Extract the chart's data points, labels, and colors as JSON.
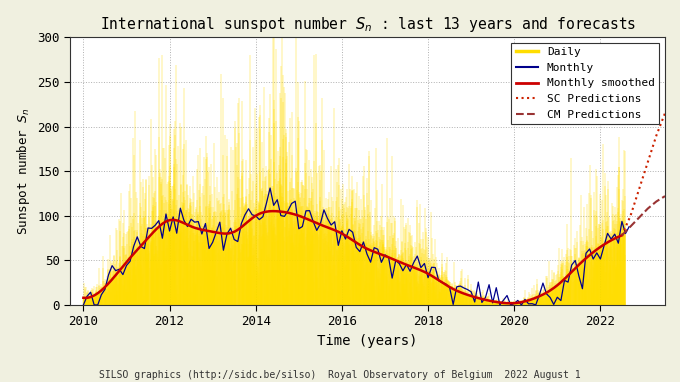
{
  "title": "International sunspot number $S_n$ : last 13 years and forecasts",
  "xlabel": "Time (years)",
  "ylabel": "Sunspot number $S_n$",
  "footnote": "SILSO graphics (http://sidc.be/silso)  Royal Observatory of Belgium  2022 August 1",
  "xlim": [
    2009.7,
    2023.5
  ],
  "ylim": [
    0,
    300
  ],
  "yticks": [
    0,
    50,
    100,
    150,
    200,
    250,
    300
  ],
  "xticks": [
    2010,
    2012,
    2014,
    2016,
    2018,
    2020,
    2022
  ],
  "bg_color": "#f0f0e0",
  "plot_bg_color": "#ffffff",
  "grid_color": "#b0b0b0",
  "daily_color": "#ffdd00",
  "monthly_color": "#00008b",
  "smoothed_color": "#cc0000",
  "sc_pred_color": "#cc2200",
  "cm_pred_color": "#993333",
  "legend_entries": [
    "Daily",
    "Monthly",
    "Monthly smoothed",
    "SC Predictions",
    "CM Predictions"
  ],
  "smoothed_x": [
    2010.0,
    2010.5,
    2011.0,
    2011.5,
    2012.0,
    2012.5,
    2013.0,
    2013.5,
    2014.0,
    2014.5,
    2015.0,
    2015.5,
    2016.0,
    2016.5,
    2017.0,
    2017.5,
    2018.0,
    2018.5,
    2019.0,
    2019.5,
    2020.0,
    2020.5,
    2021.0,
    2021.5,
    2022.0,
    2022.5
  ],
  "smoothed_y": [
    8,
    20,
    48,
    75,
    95,
    88,
    82,
    82,
    100,
    105,
    100,
    90,
    80,
    65,
    55,
    45,
    35,
    20,
    10,
    4,
    2,
    8,
    22,
    45,
    65,
    78
  ],
  "sc_pred_x": [
    2022.5,
    2022.7,
    2022.9,
    2023.1,
    2023.3,
    2023.5
  ],
  "sc_pred_y": [
    78,
    100,
    130,
    160,
    190,
    215
  ],
  "cm_pred_x": [
    2022.5,
    2022.7,
    2022.9,
    2023.1,
    2023.3,
    2023.5
  ],
  "cm_pred_y": [
    78,
    88,
    98,
    108,
    116,
    122
  ]
}
